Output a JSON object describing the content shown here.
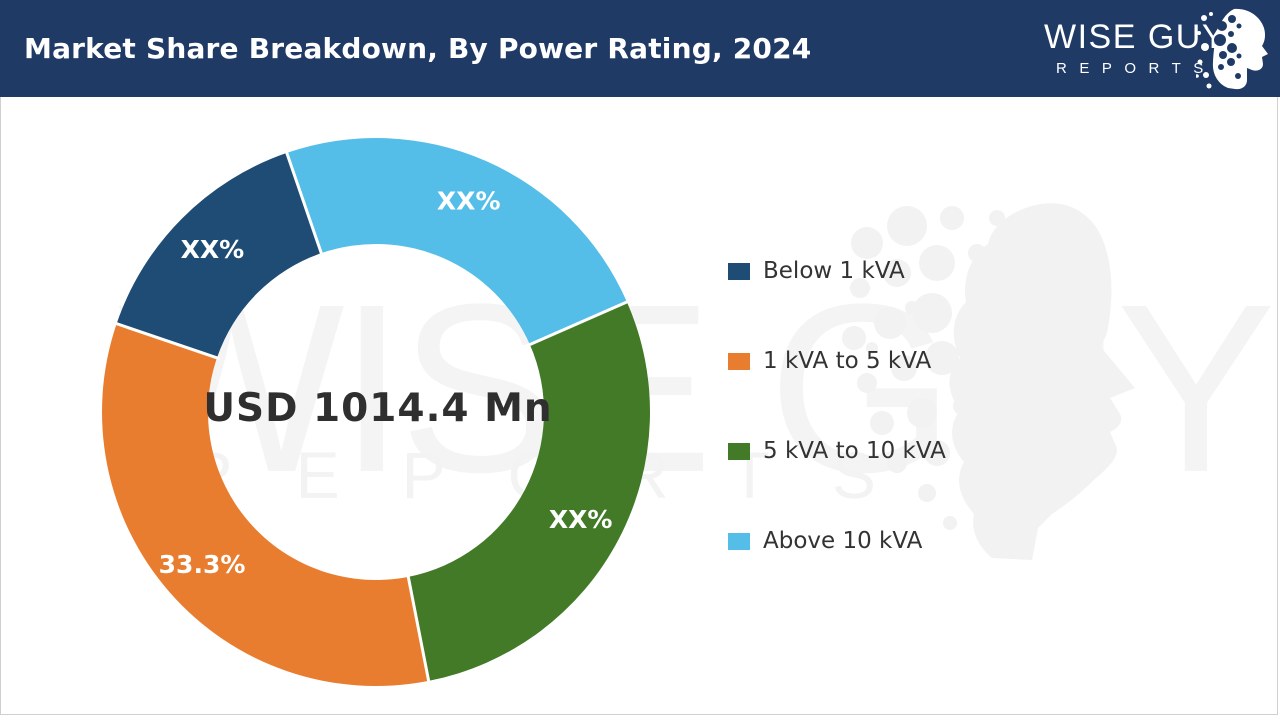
{
  "header": {
    "title": "Market Share Breakdown, By Power Rating, 2024",
    "logo_line1": "WISE GUY",
    "logo_line2": "REPORTS"
  },
  "watermark": {
    "big_text": "WISE GUY",
    "sub_text": "REPORTS"
  },
  "chart_data": {
    "type": "pie",
    "subtype": "donut",
    "title": "Market Share Breakdown, By Power Rating, 2024",
    "center_label": "USD 1014.4 Mn",
    "start_angle_deg": -19,
    "direction": "clockwise",
    "slices_clockwise": [
      {
        "label": "Above 10 kVA",
        "value_pct": 23.7,
        "data_label": "XX%",
        "color": "#54BEE8"
      },
      {
        "label": "5 kVA to 10 kVA",
        "value_pct": 28.5,
        "data_label": "XX%",
        "color": "#427A28"
      },
      {
        "label": "1 kVA to 5 kVA",
        "value_pct": 33.3,
        "data_label": "33.3%",
        "color": "#E97D2F"
      },
      {
        "label": "Below 1 kVA",
        "value_pct": 14.5,
        "data_label": "XX%",
        "color": "#1F4C74"
      }
    ],
    "legend": [
      {
        "label": "Below 1 kVA",
        "color": "#1F4C74"
      },
      {
        "label": "1 kVA to 5 kVA",
        "color": "#E97D2F"
      },
      {
        "label": "5 kVA to 10 kVA",
        "color": "#427A28"
      },
      {
        "label": "Above 10 kVA",
        "color": "#54BEE8"
      }
    ],
    "legend_position": "right"
  },
  "colors": {
    "header_bg": "#203A66",
    "header_text": "#FFFFFF",
    "center_text": "#2F2F2F",
    "legend_text": "#333333",
    "slice_label_text": "#FFFFFF",
    "watermark": "#F2F2F3"
  }
}
